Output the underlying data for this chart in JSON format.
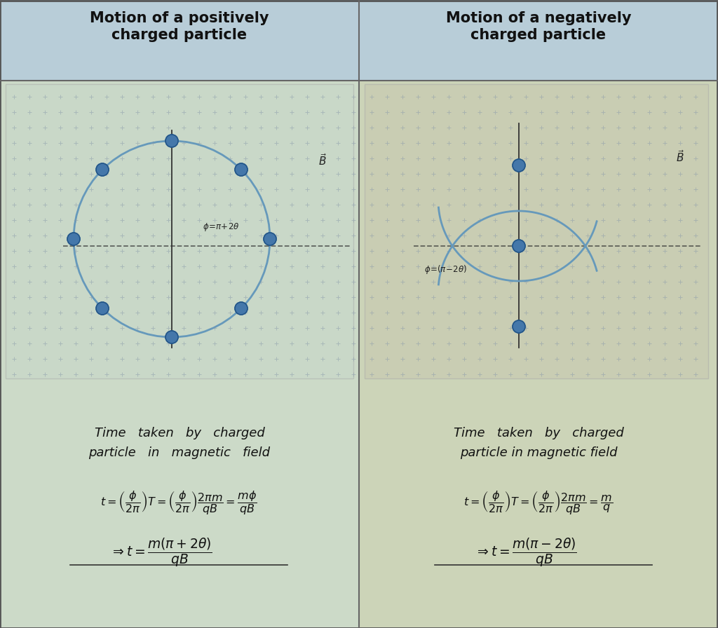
{
  "title_left": "Motion of a positively\ncharged particle",
  "title_right": "Motion of a negatively\ncharged particle",
  "header_bg": "#b8cdd8",
  "content_bg_left": "#ccdac8",
  "content_bg_right": "#ccd4b8",
  "divider_color": "#666666",
  "text_color": "#111111",
  "title_fontsize": 15,
  "body_fontsize": 13,
  "text_left_1": "Time   taken   by   charged",
  "text_left_2": "particle   in   magnetic   field",
  "text_right_1": "Time   taken   by   charged",
  "text_right_2": "particle in magnetic field"
}
